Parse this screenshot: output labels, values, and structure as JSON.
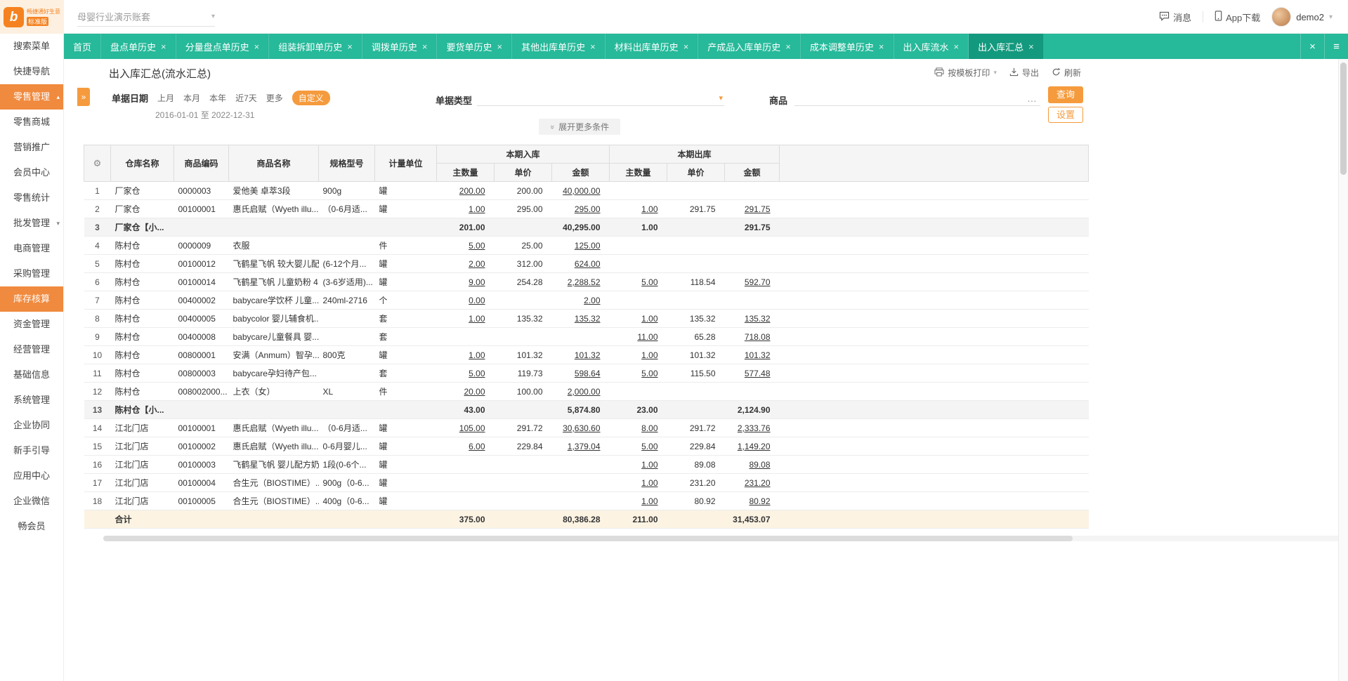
{
  "colors": {
    "teal": "#26b99a",
    "teal_dark": "#13997e",
    "orange": "#f59b3d",
    "orange_deep": "#f08a3e",
    "header_bg": "#f5f5f6",
    "subtotal_bg": "#f4f4f4",
    "total_bg": "#fcf3e3",
    "logo": "#f58220"
  },
  "topbar": {
    "logo_title": "畅捷通好生意",
    "logo_subtitle": "标准版",
    "account_select": "母婴行业演示账套",
    "messages_label": "消息",
    "app_download_label": "App下载",
    "username": "demo2"
  },
  "tabs": {
    "items": [
      {
        "label": "首页",
        "closable": false,
        "active": false
      },
      {
        "label": "盘点单历史",
        "closable": true,
        "active": false
      },
      {
        "label": "分量盘点单历史",
        "closable": true,
        "active": false
      },
      {
        "label": "组装拆卸单历史",
        "closable": true,
        "active": false
      },
      {
        "label": "调拨单历史",
        "closable": true,
        "active": false
      },
      {
        "label": "要货单历史",
        "closable": true,
        "active": false
      },
      {
        "label": "其他出库单历史",
        "closable": true,
        "active": false
      },
      {
        "label": "材料出库单历史",
        "closable": true,
        "active": false
      },
      {
        "label": "产成品入库单历史",
        "closable": true,
        "active": false
      },
      {
        "label": "成本调整单历史",
        "closable": true,
        "active": false
      },
      {
        "label": "出入库流水",
        "closable": true,
        "active": false
      },
      {
        "label": "出入库汇总",
        "closable": true,
        "active": true
      }
    ]
  },
  "sidebar": {
    "items": [
      {
        "label": "搜索菜单",
        "type": "plain"
      },
      {
        "label": "快捷导航",
        "type": "plain"
      },
      {
        "label": "零售管理",
        "type": "group-open"
      },
      {
        "label": "零售商城",
        "type": "sub"
      },
      {
        "label": "营销推广",
        "type": "sub"
      },
      {
        "label": "会员中心",
        "type": "sub"
      },
      {
        "label": "零售统计",
        "type": "sub"
      },
      {
        "label": "批发管理",
        "type": "group-closed"
      },
      {
        "label": "电商管理",
        "type": "plain"
      },
      {
        "label": "采购管理",
        "type": "plain"
      },
      {
        "label": "库存核算",
        "type": "active"
      },
      {
        "label": "资金管理",
        "type": "plain"
      },
      {
        "label": "经营管理",
        "type": "plain"
      },
      {
        "label": "基础信息",
        "type": "plain"
      },
      {
        "label": "系统管理",
        "type": "plain"
      },
      {
        "label": "企业协同",
        "type": "plain"
      },
      {
        "label": "新手引导",
        "type": "plain"
      },
      {
        "label": "应用中心",
        "type": "plain"
      },
      {
        "label": "企业微信",
        "type": "plain"
      },
      {
        "label": "畅会员",
        "type": "plain"
      }
    ]
  },
  "page": {
    "title": "出入库汇总(流水汇总)",
    "print_label": "按模板打印",
    "export_label": "导出",
    "refresh_label": "刷新"
  },
  "filters": {
    "date_label": "单据日期",
    "date_options": [
      "上月",
      "本月",
      "本年",
      "近7天",
      "更多"
    ],
    "date_custom": "自定义",
    "date_range": "2016-01-01 至 2022-12-31",
    "doc_type_label": "单据类型",
    "product_label": "商品",
    "query_button": "查询",
    "settings_button": "设置",
    "expand_more": "展开更多条件"
  },
  "table": {
    "headers": {
      "warehouse": "仓库名称",
      "code": "商品编码",
      "name": "商品名称",
      "spec": "规格型号",
      "unit": "计量单位",
      "group_in": "本期入库",
      "group_out": "本期出库",
      "qty": "主数量",
      "price": "单价",
      "amount": "金额"
    },
    "rows": [
      {
        "n": "1",
        "warehouse": "厂家仓",
        "code": "0000003",
        "name": "爱他美 卓萃3段",
        "spec": "900g",
        "unit": "罐",
        "in_qty": "200.00",
        "in_price": "200.00",
        "in_amt": "40,000.00",
        "out_qty": "",
        "out_price": "",
        "out_amt": "",
        "type": "data"
      },
      {
        "n": "2",
        "warehouse": "厂家仓",
        "code": "00100001",
        "name": "惠氏启赋（Wyeth illu...",
        "spec": "（0-6月适...",
        "unit": "罐",
        "in_qty": "1.00",
        "in_price": "295.00",
        "in_amt": "295.00",
        "out_qty": "1.00",
        "out_price": "291.75",
        "out_amt": "291.75",
        "type": "data"
      },
      {
        "n": "3",
        "warehouse": "厂家仓【小...",
        "code": "",
        "name": "",
        "spec": "",
        "unit": "",
        "in_qty": "201.00",
        "in_price": "",
        "in_amt": "40,295.00",
        "out_qty": "1.00",
        "out_price": "",
        "out_amt": "291.75",
        "type": "subtotal"
      },
      {
        "n": "4",
        "warehouse": "陈村仓",
        "code": "0000009",
        "name": "衣服",
        "spec": "",
        "unit": "件",
        "in_qty": "5.00",
        "in_price": "25.00",
        "in_amt": "125.00",
        "out_qty": "",
        "out_price": "",
        "out_amt": "",
        "type": "data"
      },
      {
        "n": "5",
        "warehouse": "陈村仓",
        "code": "00100012",
        "name": "飞鹤星飞帆 较大婴儿配...",
        "spec": "(6-12个月...",
        "unit": "罐",
        "in_qty": "2.00",
        "in_price": "312.00",
        "in_amt": "624.00",
        "out_qty": "",
        "out_price": "",
        "out_amt": "",
        "type": "data"
      },
      {
        "n": "6",
        "warehouse": "陈村仓",
        "code": "00100014",
        "name": "飞鹤星飞帆 儿童奶粉 4...",
        "spec": "(3-6岁适用)...",
        "unit": "罐",
        "in_qty": "9.00",
        "in_price": "254.28",
        "in_amt": "2,288.52",
        "out_qty": "5.00",
        "out_price": "118.54",
        "out_amt": "592.70",
        "type": "data"
      },
      {
        "n": "7",
        "warehouse": "陈村仓",
        "code": "00400002",
        "name": "babycare学饮杯 儿童...",
        "spec": "240ml-2716",
        "unit": "个",
        "in_qty": "0.00",
        "in_price": "",
        "in_amt": "2.00",
        "out_qty": "",
        "out_price": "",
        "out_amt": "",
        "type": "data"
      },
      {
        "n": "8",
        "warehouse": "陈村仓",
        "code": "00400005",
        "name": "babycolor 婴儿辅食机...",
        "spec": "",
        "unit": "套",
        "in_qty": "1.00",
        "in_price": "135.32",
        "in_amt": "135.32",
        "out_qty": "1.00",
        "out_price": "135.32",
        "out_amt": "135.32",
        "type": "data"
      },
      {
        "n": "9",
        "warehouse": "陈村仓",
        "code": "00400008",
        "name": "babycare儿童餐具 婴...",
        "spec": "",
        "unit": "套",
        "in_qty": "",
        "in_price": "",
        "in_amt": "",
        "out_qty": "11.00",
        "out_price": "65.28",
        "out_amt": "718.08",
        "type": "data"
      },
      {
        "n": "10",
        "warehouse": "陈村仓",
        "code": "00800001",
        "name": "安满（Anmum）智孕...",
        "spec": "800克",
        "unit": "罐",
        "in_qty": "1.00",
        "in_price": "101.32",
        "in_amt": "101.32",
        "out_qty": "1.00",
        "out_price": "101.32",
        "out_amt": "101.32",
        "type": "data"
      },
      {
        "n": "11",
        "warehouse": "陈村仓",
        "code": "00800003",
        "name": "babycare孕妇待产包...",
        "spec": "",
        "unit": "套",
        "in_qty": "5.00",
        "in_price": "119.73",
        "in_amt": "598.64",
        "out_qty": "5.00",
        "out_price": "115.50",
        "out_amt": "577.48",
        "type": "data"
      },
      {
        "n": "12",
        "warehouse": "陈村仓",
        "code": "008002000...",
        "name": "上衣（女）",
        "spec": "XL",
        "unit": "件",
        "in_qty": "20.00",
        "in_price": "100.00",
        "in_amt": "2,000.00",
        "out_qty": "",
        "out_price": "",
        "out_amt": "",
        "type": "data"
      },
      {
        "n": "13",
        "warehouse": "陈村仓【小...",
        "code": "",
        "name": "",
        "spec": "",
        "unit": "",
        "in_qty": "43.00",
        "in_price": "",
        "in_amt": "5,874.80",
        "out_qty": "23.00",
        "out_price": "",
        "out_amt": "2,124.90",
        "type": "subtotal"
      },
      {
        "n": "14",
        "warehouse": "江北门店",
        "code": "00100001",
        "name": "惠氏启赋（Wyeth illu...",
        "spec": "（0-6月适...",
        "unit": "罐",
        "in_qty": "105.00",
        "in_price": "291.72",
        "in_amt": "30,630.60",
        "out_qty": "8.00",
        "out_price": "291.72",
        "out_amt": "2,333.76",
        "type": "data"
      },
      {
        "n": "15",
        "warehouse": "江北门店",
        "code": "00100002",
        "name": "惠氏启赋（Wyeth illu...",
        "spec": "0-6月婴儿...",
        "unit": "罐",
        "in_qty": "6.00",
        "in_price": "229.84",
        "in_amt": "1,379.04",
        "out_qty": "5.00",
        "out_price": "229.84",
        "out_amt": "1,149.20",
        "type": "data"
      },
      {
        "n": "16",
        "warehouse": "江北门店",
        "code": "00100003",
        "name": "飞鹤星飞帆 婴儿配方奶...",
        "spec": "1段(0-6个...",
        "unit": "罐",
        "in_qty": "",
        "in_price": "",
        "in_amt": "",
        "out_qty": "1.00",
        "out_price": "89.08",
        "out_amt": "89.08",
        "type": "data"
      },
      {
        "n": "17",
        "warehouse": "江北门店",
        "code": "00100004",
        "name": "合生元（BIOSTIME）...",
        "spec": "900g（0-6...",
        "unit": "罐",
        "in_qty": "",
        "in_price": "",
        "in_amt": "",
        "out_qty": "1.00",
        "out_price": "231.20",
        "out_amt": "231.20",
        "type": "data"
      },
      {
        "n": "18",
        "warehouse": "江北门店",
        "code": "00100005",
        "name": "合生元（BIOSTIME）...",
        "spec": "400g（0-6...",
        "unit": "罐",
        "in_qty": "",
        "in_price": "",
        "in_amt": "",
        "out_qty": "1.00",
        "out_price": "80.92",
        "out_amt": "80.92",
        "type": "data"
      },
      {
        "n": "",
        "warehouse": "合计",
        "code": "",
        "name": "",
        "spec": "",
        "unit": "",
        "in_qty": "375.00",
        "in_price": "",
        "in_amt": "80,386.28",
        "out_qty": "211.00",
        "out_price": "",
        "out_amt": "31,453.07",
        "type": "total"
      }
    ]
  }
}
